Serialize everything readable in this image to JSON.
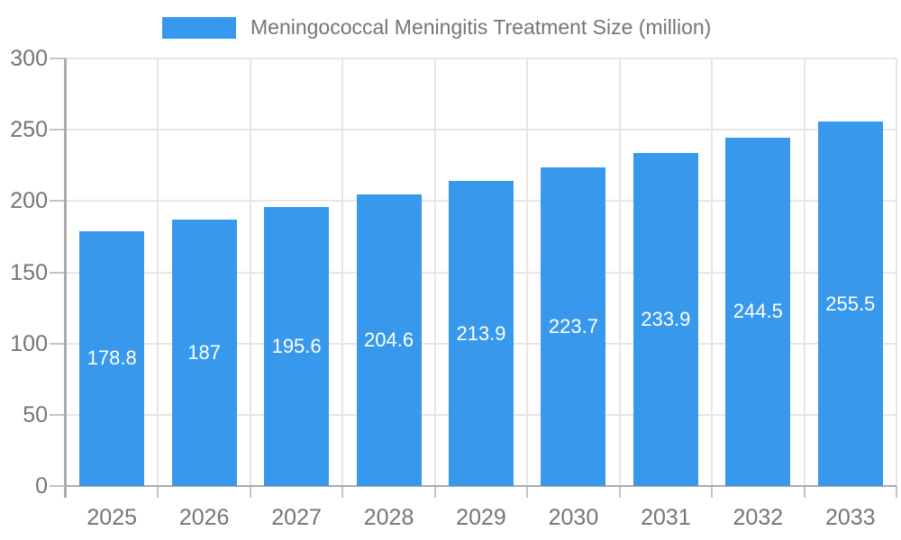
{
  "legend": {
    "label": "Meningococcal Meningitis Treatment Size (million)"
  },
  "chart_data": {
    "type": "bar",
    "title": "Meningococcal Meningitis Treatment Size (million)",
    "categories": [
      "2025",
      "2026",
      "2027",
      "2028",
      "2029",
      "2030",
      "2031",
      "2032",
      "2033"
    ],
    "values": [
      178.8,
      187,
      195.6,
      204.6,
      213.9,
      223.7,
      233.9,
      244.5,
      255.5
    ],
    "value_labels": [
      "178.8",
      "187",
      "195.6",
      "204.6",
      "213.9",
      "223.7",
      "233.9",
      "244.5",
      "255.5"
    ],
    "series_name": "Meningococcal Meningitis Treatment Size (million)",
    "xlabel": "",
    "ylabel": "",
    "yticks": [
      0,
      50,
      100,
      150,
      200,
      250,
      300
    ],
    "ylim": [
      0,
      300
    ],
    "grid": true,
    "legend_position": "top",
    "colors": {
      "bar": "#3899EC",
      "value_label": "#ffffff",
      "axis_text": "#757575",
      "gridline": "#e6e6e6",
      "axis_line": "#ababab",
      "tick": "#c4c4c4",
      "background": "#ffffff"
    }
  }
}
